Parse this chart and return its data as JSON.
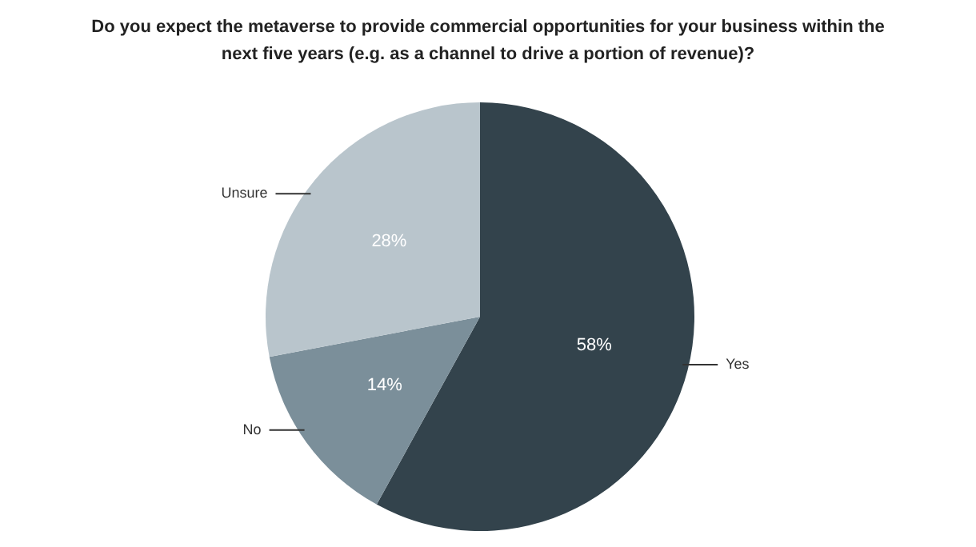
{
  "chart_data": {
    "type": "pie",
    "title": "Do you expect the metaverse to provide commercial opportunities for your business within the next five years (e.g. as a channel to drive a portion of revenue)?",
    "categories": [
      "Yes",
      "No",
      "Unsure"
    ],
    "values": [
      58,
      14,
      28
    ],
    "colors": [
      "#33434c",
      "#7b8f9a",
      "#b9c5cc"
    ],
    "value_labels": [
      "58%",
      "14%",
      "28%"
    ]
  }
}
